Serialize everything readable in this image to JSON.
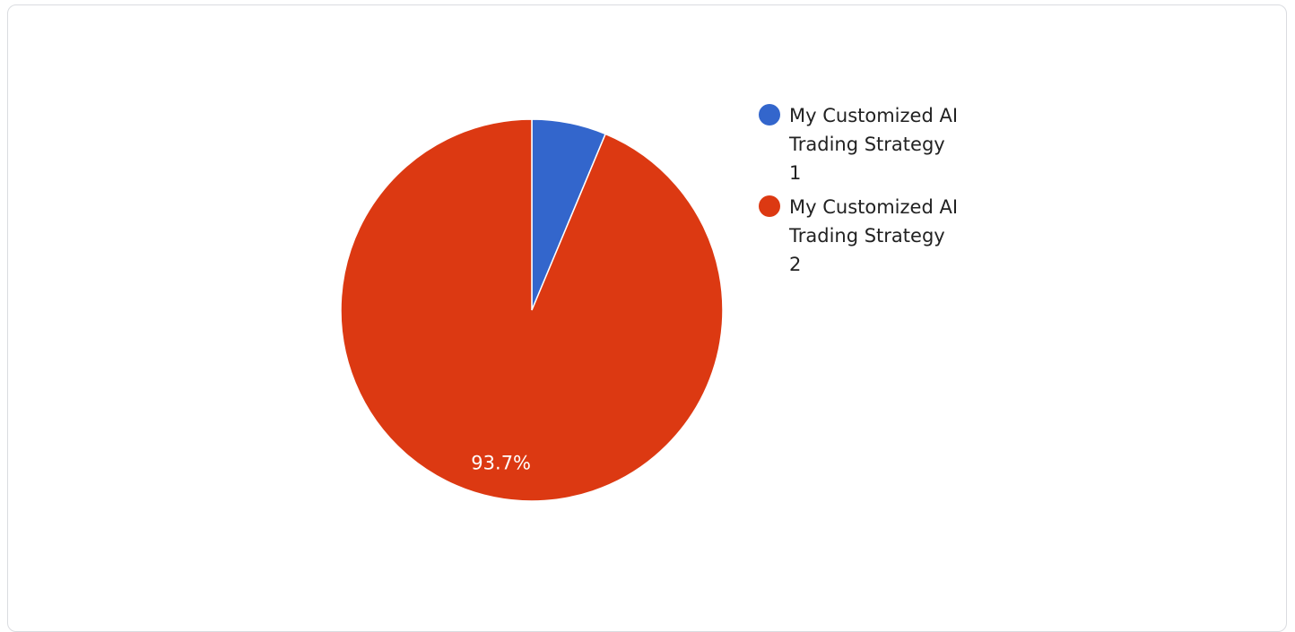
{
  "chart_data": {
    "type": "pie",
    "title": "",
    "slices": [
      {
        "name": "My Customized AI Trading Strategy 1",
        "value": 6.3,
        "color": "#3366cc",
        "label": ""
      },
      {
        "name": "My Customized AI Trading Strategy 2",
        "value": 93.7,
        "color": "#dc3912",
        "label": "93.7%"
      }
    ],
    "legend_placement": "right",
    "start_angle": "top",
    "direction": "clockwise"
  }
}
